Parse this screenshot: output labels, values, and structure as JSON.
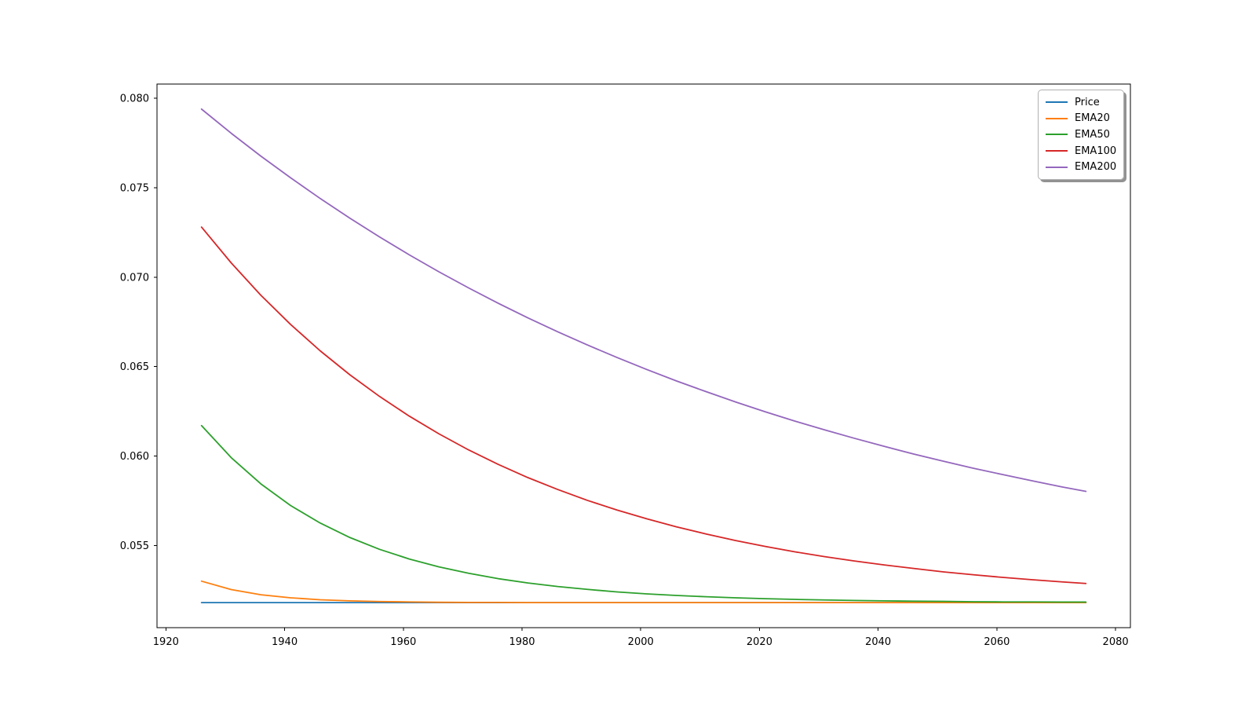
{
  "figure": {
    "background": "#ffffff",
    "plot_border_color": "#000000"
  },
  "chart_data": {
    "type": "line",
    "title": "",
    "xlabel": "",
    "ylabel": "",
    "grid": false,
    "xlim": [
      1918.5,
      2082.5
    ],
    "ylim": [
      0.0504,
      0.0808
    ],
    "x_ticks": [
      1920,
      1940,
      1960,
      1980,
      2000,
      2020,
      2040,
      2060,
      2080
    ],
    "x_tick_labels": [
      "1920",
      "1940",
      "1960",
      "1980",
      "2000",
      "2020",
      "2040",
      "2060",
      "2080"
    ],
    "y_ticks": [
      0.055,
      0.06,
      0.065,
      0.07,
      0.075,
      0.08
    ],
    "y_tick_labels": [
      "0.055",
      "0.060",
      "0.065",
      "0.070",
      "0.075",
      "0.080"
    ],
    "legend": {
      "position": "upper right"
    },
    "x": [
      1926,
      1931,
      1936,
      1941,
      1946,
      1951,
      1956,
      1961,
      1966,
      1971,
      1976,
      1981,
      1986,
      1991,
      1996,
      2001,
      2006,
      2011,
      2016,
      2021,
      2026,
      2031,
      2036,
      2041,
      2046,
      2051,
      2056,
      2061,
      2066,
      2071,
      2075
    ],
    "series": [
      {
        "name": "Price",
        "color": "#1f77b4",
        "values": [
          0.0518,
          0.0518,
          0.0518,
          0.0518,
          0.0518,
          0.0518,
          0.0518,
          0.0518,
          0.0518,
          0.0518,
          0.0518,
          0.0518,
          0.0518,
          0.0518,
          0.0518,
          0.0518,
          0.0518,
          0.0518,
          0.0518,
          0.0518,
          0.0518,
          0.0518,
          0.0518,
          0.0518,
          0.0518,
          0.0518,
          0.0518,
          0.0518,
          0.0518,
          0.0518,
          0.0518
        ]
      },
      {
        "name": "EMA20",
        "color": "#ff7f0e",
        "values": [
          0.053,
          0.05253,
          0.05224,
          0.05207,
          0.05196,
          0.0519,
          0.05186,
          0.05184,
          0.05182,
          0.05181,
          0.05181,
          0.0518,
          0.0518,
          0.0518,
          0.0518,
          0.0518,
          0.0518,
          0.0518,
          0.0518,
          0.0518,
          0.0518,
          0.0518,
          0.0518,
          0.0518,
          0.0518,
          0.0518,
          0.0518,
          0.0518,
          0.0518,
          0.0518,
          0.0518
        ]
      },
      {
        "name": "EMA50",
        "color": "#2ca02c",
        "values": [
          0.0617,
          0.05991,
          0.05844,
          0.05723,
          0.05625,
          0.05544,
          0.05478,
          0.05424,
          0.0538,
          0.05344,
          0.05314,
          0.0529,
          0.0527,
          0.05254,
          0.0524,
          0.05229,
          0.0522,
          0.05213,
          0.05207,
          0.05202,
          0.05198,
          0.05195,
          0.05192,
          0.0519,
          0.05188,
          0.05187,
          0.05185,
          0.05184,
          0.05184,
          0.05183,
          0.05183
        ]
      },
      {
        "name": "EMA100",
        "color": "#d62728",
        "values": [
          0.0728,
          0.0708,
          0.06899,
          0.06736,
          0.06588,
          0.06454,
          0.06333,
          0.06223,
          0.06124,
          0.06034,
          0.05953,
          0.05879,
          0.05813,
          0.05752,
          0.05698,
          0.05649,
          0.05604,
          0.05564,
          0.05527,
          0.05494,
          0.05464,
          0.05437,
          0.05413,
          0.05391,
          0.05371,
          0.05352,
          0.05336,
          0.05321,
          0.05308,
          0.05296,
          0.05287
        ]
      },
      {
        "name": "EMA200",
        "color": "#9467bd",
        "values": [
          0.0794,
          0.07805,
          0.07677,
          0.07556,
          0.0744,
          0.0733,
          0.07225,
          0.07125,
          0.0703,
          0.0694,
          0.06854,
          0.06772,
          0.06695,
          0.06621,
          0.06551,
          0.06484,
          0.0642,
          0.0636,
          0.06302,
          0.06247,
          0.06195,
          0.06146,
          0.06099,
          0.06054,
          0.06011,
          0.05971,
          0.05932,
          0.05896,
          0.05861,
          0.05827,
          0.05802
        ]
      }
    ]
  }
}
